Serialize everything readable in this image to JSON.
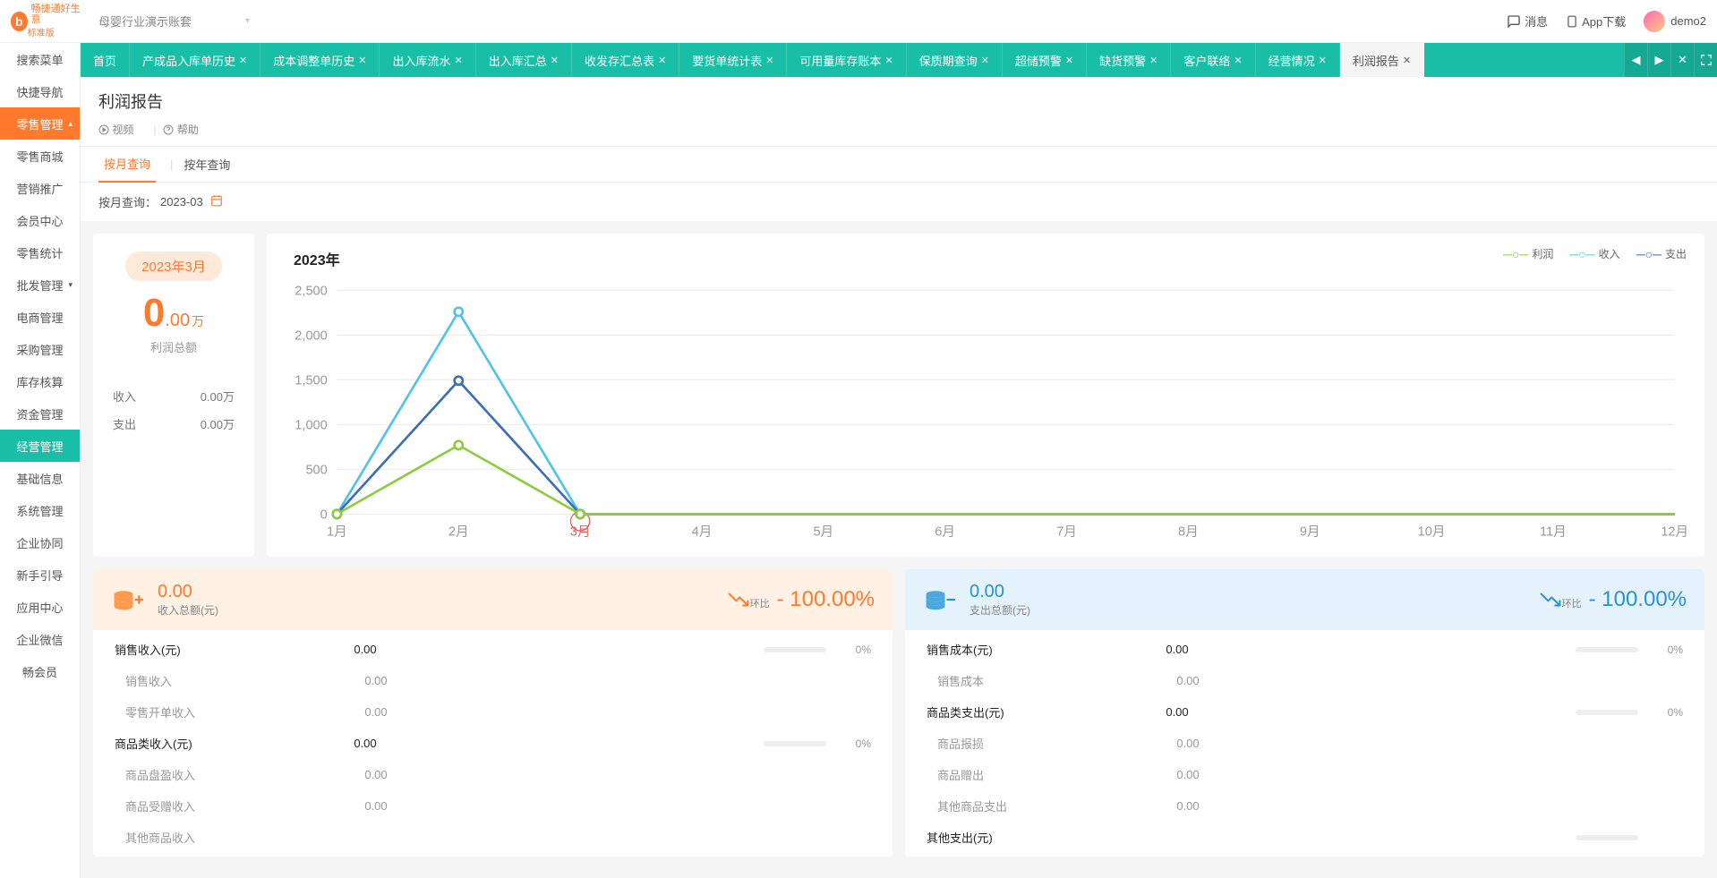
{
  "header": {
    "logo_brand": "畅捷通好生意",
    "edition": "标准版",
    "account_selector": "母婴行业演示账套",
    "msg_label": "消息",
    "app_dl_label": "App下载",
    "username": "demo2"
  },
  "sidebar": {
    "items": [
      {
        "label": "搜索菜单"
      },
      {
        "label": "快捷导航"
      },
      {
        "label": "零售管理",
        "active": true,
        "expand": true
      },
      {
        "label": "零售商城"
      },
      {
        "label": "营销推广"
      },
      {
        "label": "会员中心"
      },
      {
        "label": "零售统计"
      },
      {
        "label": "批发管理",
        "expand": true
      },
      {
        "label": "电商管理"
      },
      {
        "label": "采购管理"
      },
      {
        "label": "库存核算"
      },
      {
        "label": "资金管理"
      },
      {
        "label": "经营管理",
        "highlight": true
      },
      {
        "label": "基础信息"
      },
      {
        "label": "系统管理"
      },
      {
        "label": "企业协同"
      },
      {
        "label": "新手引导"
      },
      {
        "label": "应用中心"
      },
      {
        "label": "企业微信"
      },
      {
        "label": "畅会员"
      }
    ]
  },
  "tabs": [
    {
      "label": "首页",
      "closable": false
    },
    {
      "label": "产成品入库单历史"
    },
    {
      "label": "成本调整单历史"
    },
    {
      "label": "出入库流水"
    },
    {
      "label": "出入库汇总"
    },
    {
      "label": "收发存汇总表"
    },
    {
      "label": "要货单统计表"
    },
    {
      "label": "可用量库存账本"
    },
    {
      "label": "保质期查询"
    },
    {
      "label": "超储预警"
    },
    {
      "label": "缺货预警"
    },
    {
      "label": "客户联络"
    },
    {
      "label": "经营情况"
    },
    {
      "label": "利润报告",
      "active": true
    }
  ],
  "page": {
    "title": "利润报告",
    "links": {
      "video": "视频",
      "help": "帮助"
    },
    "query_tabs": {
      "by_month": "按月查询",
      "by_year": "按年查询"
    },
    "query_label": "按月查询：",
    "query_value": "2023-03"
  },
  "summary": {
    "period_pill": "2023年3月",
    "profit_int": "0",
    "profit_dec": ".00",
    "profit_unit": "万",
    "profit_label": "利润总额",
    "income_label": "收入",
    "income_value": "0.00万",
    "expense_label": "支出",
    "expense_value": "0.00万"
  },
  "chart": {
    "title": "2023年",
    "legend": {
      "profit": "利润",
      "income": "收入",
      "expense": "支出"
    },
    "colors": {
      "profit": "#8ecb3f",
      "income": "#4fc3e8",
      "expense": "#3b6fb6",
      "axis": "#cccccc",
      "grid": "#eeeeee",
      "current_month": "#e85d5d"
    },
    "x_labels": [
      "1月",
      "2月",
      "3月",
      "4月",
      "5月",
      "6月",
      "7月",
      "8月",
      "9月",
      "10月",
      "11月",
      "12月"
    ],
    "current_month_index": 2,
    "y_ticks": [
      0,
      500,
      1000,
      1500,
      2000,
      2500
    ],
    "ylim": [
      0,
      2600
    ],
    "series": {
      "profit": [
        0,
        770,
        0,
        0,
        0,
        0,
        0,
        0,
        0,
        0,
        0,
        0
      ],
      "income": [
        0,
        2260,
        0,
        0,
        0,
        0,
        0,
        0,
        0,
        0,
        0,
        0
      ],
      "expense": [
        0,
        1490,
        0,
        0,
        0,
        0,
        0,
        0,
        0,
        0,
        0,
        0
      ]
    }
  },
  "income_panel": {
    "head_value": "0.00",
    "head_label": "收入总额(元)",
    "trend_label": "环比",
    "trend_value": "- 100.00%",
    "rows": [
      {
        "name": "销售收入(元)",
        "value": "0.00",
        "pct": "0%",
        "bold": true
      },
      {
        "name": "销售收入",
        "value": "0.00",
        "sub": true
      },
      {
        "name": "零售开单收入",
        "value": "0.00",
        "sub": true
      },
      {
        "name": "商品类收入(元)",
        "value": "0.00",
        "pct": "0%",
        "bold": true
      },
      {
        "name": "商品盘盈收入",
        "value": "0.00",
        "sub": true
      },
      {
        "name": "商品受赠收入",
        "value": "0.00",
        "sub": true
      },
      {
        "name": "其他商品收入",
        "value": "",
        "sub": true
      }
    ]
  },
  "expense_panel": {
    "head_value": "0.00",
    "head_label": "支出总额(元)",
    "trend_label": "环比",
    "trend_value": "- 100.00%",
    "rows": [
      {
        "name": "销售成本(元)",
        "value": "0.00",
        "pct": "0%",
        "bold": true
      },
      {
        "name": "销售成本",
        "value": "0.00",
        "sub": true
      },
      {
        "name": "商品类支出(元)",
        "value": "0.00",
        "pct": "0%",
        "bold": true
      },
      {
        "name": "商品报损",
        "value": "0.00",
        "sub": true
      },
      {
        "name": "商品赠出",
        "value": "0.00",
        "sub": true
      },
      {
        "name": "其他商品支出",
        "value": "0.00",
        "sub": true
      },
      {
        "name": "其他支出(元)",
        "value": "",
        "bold": true
      }
    ]
  }
}
